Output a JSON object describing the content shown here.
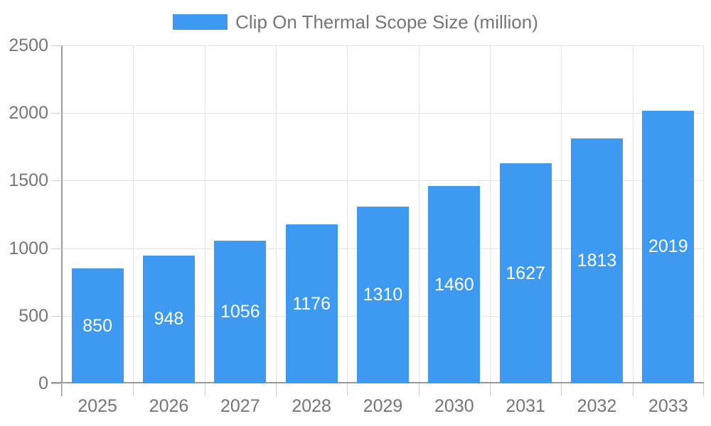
{
  "chart_data": {
    "type": "bar",
    "title": "Clip On Thermal Scope Size (million)",
    "categories": [
      "2025",
      "2026",
      "2027",
      "2028",
      "2029",
      "2030",
      "2031",
      "2032",
      "2033"
    ],
    "series": [
      {
        "name": "Clip On Thermal Scope Size (million)",
        "values": [
          850,
          948,
          1056,
          1176,
          1310,
          1460,
          1627,
          1813,
          2019
        ]
      }
    ],
    "xlabel": "",
    "ylabel": "",
    "ylim": [
      0,
      2500
    ],
    "yticks": [
      0,
      500,
      1000,
      1500,
      2000,
      2500
    ],
    "grid": true,
    "legend_position": "top",
    "value_labels": "inside-center",
    "colors": {
      "bar": "#3d9af0",
      "value_label": "#ffffff",
      "axis_text": "#757575",
      "grid_line": "#e3e3e3",
      "axis_line": "#999999",
      "tick_mark": "#cccccc",
      "background": "#ffffff"
    }
  }
}
